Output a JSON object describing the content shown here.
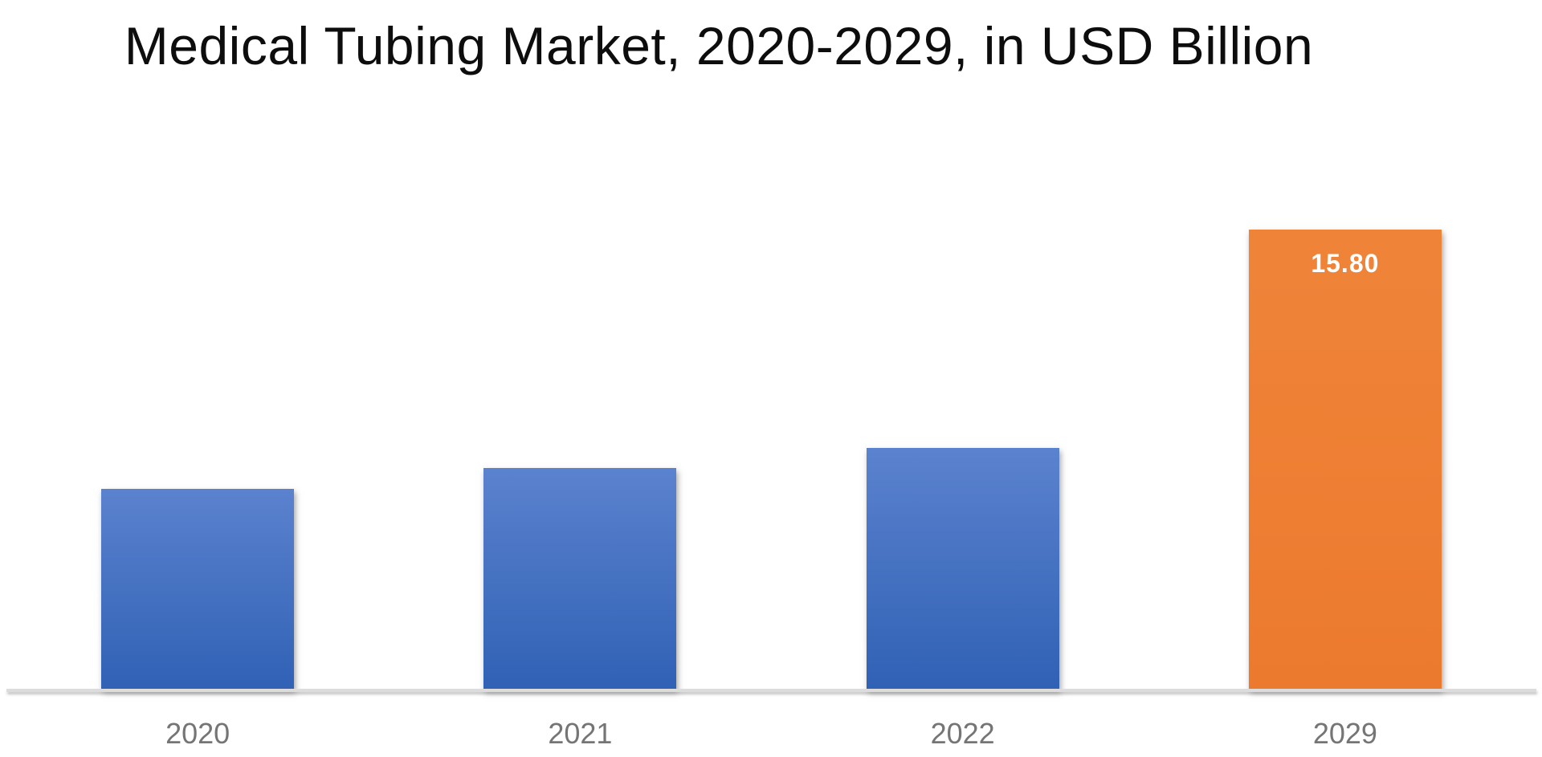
{
  "title": "Medical Tubing Market, 2020-2029, in USD Billion",
  "chart_data": {
    "type": "bar",
    "title": "Medical Tubing Market, 2020-2029, in USD Billion",
    "categories": [
      "2020",
      "2021",
      "2022",
      "2029"
    ],
    "values": [
      6.9,
      7.6,
      8.3,
      15.8
    ],
    "data_labels": [
      "",
      "",
      "",
      "15.80"
    ],
    "xlabel": "",
    "ylabel": "",
    "ylim": [
      0,
      17.5
    ],
    "grid": false,
    "legend": "none",
    "bar_colors_top": [
      "#5B82CE",
      "#5B82CE",
      "#5B82CE",
      "#EF8439"
    ],
    "bar_colors_bottom": [
      "#3061B5",
      "#3061B5",
      "#3061B5",
      "#EC7A2E"
    ],
    "value_label_color": "#FFFFFF",
    "category_label_color": "#757575",
    "axis_line_color": "#DCDCDC",
    "title_color": "#0D0D0D",
    "background_color": "#FFFFFF"
  }
}
